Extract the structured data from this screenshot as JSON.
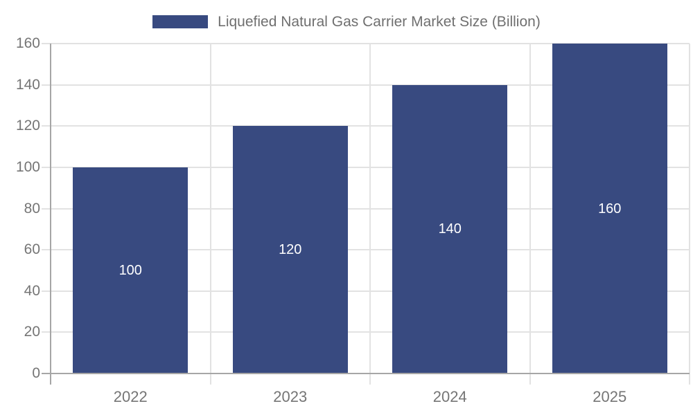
{
  "chart_data": {
    "type": "bar",
    "title": "Liquefied Natural Gas Carrier Market Size (Billion)",
    "categories": [
      "2022",
      "2023",
      "2024",
      "2025"
    ],
    "values": [
      100,
      120,
      140,
      160
    ],
    "xlabel": "",
    "ylabel": "",
    "ylim": [
      0,
      160
    ],
    "yticks": [
      0,
      20,
      40,
      60,
      80,
      100,
      120,
      140,
      160
    ],
    "grid": true,
    "legend_position": "top",
    "bar_labels_visible": true
  },
  "colors": {
    "bar": "#384A80",
    "bar_label": "#ffffff",
    "axis_text": "#757575",
    "legend_text": "#6f6f6f",
    "gridline": "#e2e2e2",
    "axis_line": "#a6a6a6",
    "background": "#ffffff"
  }
}
